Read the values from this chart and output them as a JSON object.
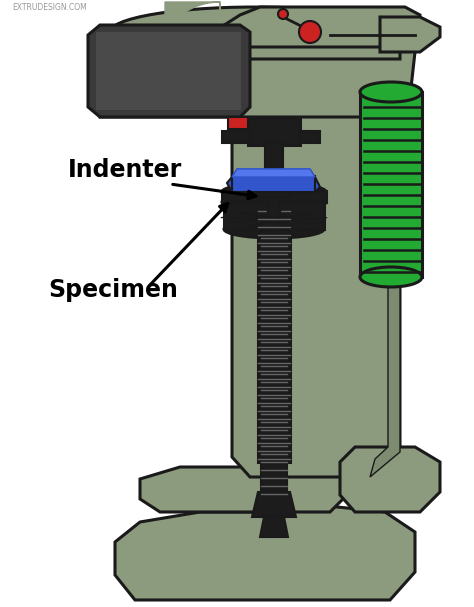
{
  "bg_color": "#ffffff",
  "mc": "#8c9a7e",
  "mc2": "#7d8c71",
  "oc": "#1a1a1a",
  "bk": "#1c1c1c",
  "red": "#cc2222",
  "green": "#22aa33",
  "blue_spec": "#3355cc",
  "blue_light": "#5577ee",
  "gray_box": "#3a3a3a",
  "gray_mid": "#666666",
  "lw": 2.2,
  "indenter_label": "Indenter",
  "specimen_label": "Specimen",
  "watermark": "EXTRUDESIGN.COM"
}
